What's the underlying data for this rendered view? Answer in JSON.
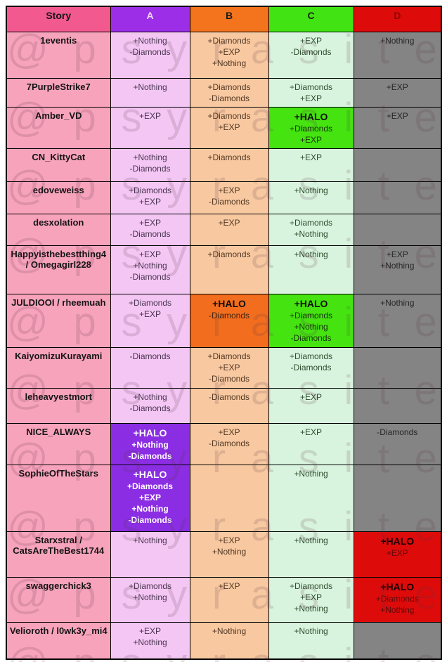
{
  "watermark": {
    "text": "@psyrasite"
  },
  "colors": {
    "header_story_bg": "#F2598E",
    "header_a_bg": "#9C2EE8",
    "header_b_bg": "#F4731D",
    "header_c_bg": "#41E313",
    "header_d_bg": "#DE0B0B",
    "story_cell_bg": "#F7A3BC",
    "a_cell_bg": "#F3C6F3",
    "b_cell_bg": "#F8C9A1",
    "c_cell_bg": "#D9F4DE",
    "d_cell_bg": "#848484",
    "halo_purple": "#8B2EE3",
    "halo_orange": "#F26E1E",
    "halo_green": "#45E411",
    "halo_red": "#DE0B0B"
  },
  "table": {
    "columns": [
      {
        "key": "story",
        "label": "Story",
        "header_text_color": "#141414"
      },
      {
        "key": "a",
        "label": "A",
        "header_text_color": "#F2D7F5"
      },
      {
        "key": "b",
        "label": "B",
        "header_text_color": "#1A1A1A"
      },
      {
        "key": "c",
        "label": "C",
        "header_text_color": "#10280A"
      },
      {
        "key": "d",
        "label": "D",
        "header_text_color": "#8B0505"
      }
    ],
    "rows": [
      {
        "story": "1eventis",
        "a": {
          "lines": [
            "+Nothing",
            "-Diamonds"
          ]
        },
        "b": {
          "lines": [
            "+Diamonds",
            "+EXP",
            "+Nothing"
          ]
        },
        "c": {
          "lines": [
            "+EXP",
            "-Diamonds"
          ]
        },
        "d": {
          "lines": [
            "+Nothing"
          ]
        }
      },
      {
        "story": "7PurpleStrike7",
        "a": {
          "lines": [
            "+Nothing"
          ]
        },
        "b": {
          "lines": [
            "+Diamonds",
            "-Diamonds"
          ]
        },
        "c": {
          "lines": [
            "+Diamonds",
            "+EXP"
          ]
        },
        "d": {
          "lines": [
            "+EXP"
          ]
        }
      },
      {
        "story": "Amber_VD",
        "a": {
          "lines": [
            "+EXP"
          ]
        },
        "b": {
          "lines": [
            "+Diamonds",
            "+EXP"
          ]
        },
        "c": {
          "lines": [
            "+HALO",
            "+Diamonds",
            "+EXP"
          ],
          "variant": "halo-green"
        },
        "d": {
          "lines": [
            "+EXP"
          ]
        }
      },
      {
        "story": "CN_KittyCat",
        "a": {
          "lines": [
            "+Nothing",
            "-Diamonds"
          ]
        },
        "b": {
          "lines": [
            "+Diamonds"
          ]
        },
        "c": {
          "lines": [
            "+EXP"
          ]
        },
        "d": {
          "lines": []
        }
      },
      {
        "story": "edoveweiss",
        "a": {
          "lines": [
            "+Diamonds",
            "+EXP"
          ]
        },
        "b": {
          "lines": [
            "+EXP",
            "-Diamonds"
          ]
        },
        "c": {
          "lines": [
            "+Nothing"
          ]
        },
        "d": {
          "lines": []
        }
      },
      {
        "story": "desxolation",
        "a": {
          "lines": [
            "+EXP",
            "-Diamonds"
          ]
        },
        "b": {
          "lines": [
            "+EXP"
          ]
        },
        "c": {
          "lines": [
            "+Diamonds",
            "+Nothing"
          ]
        },
        "d": {
          "lines": []
        }
      },
      {
        "story": "Happyisthebestthing4 / Omegagirl228",
        "a": {
          "lines": [
            "+EXP",
            "+Nothing",
            "-Diamonds"
          ]
        },
        "b": {
          "lines": [
            "+Diamonds"
          ]
        },
        "c": {
          "lines": [
            "+Nothing"
          ]
        },
        "d": {
          "lines": [
            "+EXP",
            "+Nothing"
          ]
        }
      },
      {
        "story": "JULDIOOI / rheemuah",
        "a": {
          "lines": [
            "+Diamonds",
            "+EXP"
          ]
        },
        "b": {
          "lines": [
            "+HALO",
            "-Diamonds"
          ],
          "variant": "halo-orange"
        },
        "c": {
          "lines": [
            "+HALO",
            "+Diamonds",
            "+Nothing",
            "-Diamonds"
          ],
          "variant": "halo-green"
        },
        "d": {
          "lines": [
            "+Nothing"
          ]
        }
      },
      {
        "story": "KaiyomizuKurayami",
        "a": {
          "lines": [
            "-Diamonds"
          ]
        },
        "b": {
          "lines": [
            "+Diamonds",
            "+EXP",
            "-Diamonds"
          ]
        },
        "c": {
          "lines": [
            "+Diamonds",
            "-Diamonds"
          ]
        },
        "d": {
          "lines": []
        }
      },
      {
        "story": "leheavyestmort",
        "a": {
          "lines": [
            "+Nothing",
            "-Diamonds"
          ]
        },
        "b": {
          "lines": [
            "-Diamonds"
          ]
        },
        "c": {
          "lines": [
            "+EXP"
          ]
        },
        "d": {
          "lines": []
        }
      },
      {
        "story": "NICE_ALWAYS",
        "a": {
          "lines": [
            "+HALO",
            "+Nothing",
            "-Diamonds"
          ],
          "variant": "halo-purple"
        },
        "b": {
          "lines": [
            "+EXP",
            "-Diamonds"
          ]
        },
        "c": {
          "lines": [
            "+EXP"
          ]
        },
        "d": {
          "lines": [
            "-Diamonds"
          ]
        }
      },
      {
        "story": "SophieOfTheStars",
        "a": {
          "lines": [
            "+HALO",
            "+Diamonds",
            "+EXP",
            "+Nothing",
            "-Diamonds"
          ],
          "variant": "halo-purple"
        },
        "b": {
          "lines": []
        },
        "c": {
          "lines": [
            "+Nothing"
          ]
        },
        "d": {
          "lines": []
        }
      },
      {
        "story": "Starxstral / CatsAreTheBest1744",
        "a": {
          "lines": [
            "+Nothing"
          ]
        },
        "b": {
          "lines": [
            "+EXP",
            "+Nothing"
          ]
        },
        "c": {
          "lines": [
            "+Nothing"
          ]
        },
        "d": {
          "lines": [
            "+HALO",
            "+EXP"
          ],
          "variant": "halo-red"
        }
      },
      {
        "story": "swaggerchick3",
        "a": {
          "lines": [
            "+Diamonds",
            "+Nothing"
          ]
        },
        "b": {
          "lines": [
            "+EXP"
          ]
        },
        "c": {
          "lines": [
            "+Diamonds",
            "+EXP",
            "+Nothing"
          ]
        },
        "d": {
          "lines": [
            "+HALO",
            "+Diamonds",
            "+Nothing"
          ],
          "variant": "halo-red"
        }
      },
      {
        "story": "Velioroth / l0wk3y_mi4",
        "a": {
          "lines": [
            "+EXP",
            "+Nothing"
          ]
        },
        "b": {
          "lines": [
            "+Nothing"
          ]
        },
        "c": {
          "lines": [
            "+Nothing"
          ]
        },
        "d": {
          "lines": []
        }
      }
    ]
  }
}
